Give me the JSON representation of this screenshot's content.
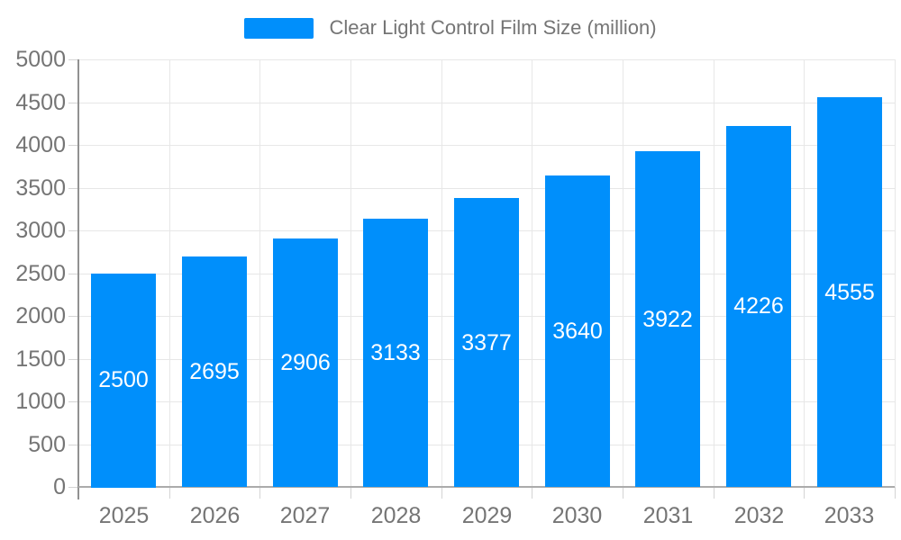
{
  "legend": {
    "label": "Clear Light Control Film Size (million)"
  },
  "colors": {
    "bar": "#008FFB",
    "axis_text": "#757575",
    "grid": "#e7e7e7",
    "tick": "#d4d4d4",
    "y_axis_line": "#919191",
    "x_axis_line": "#ababab",
    "value_label": "#ffffff",
    "background": "#ffffff"
  },
  "chart_data": {
    "type": "bar",
    "title": "Clear Light Control Film Size (million)",
    "series": [
      {
        "name": "Clear Light Control Film Size (million)",
        "values": [
          2500,
          2695,
          2906,
          3133,
          3377,
          3640,
          3922,
          4226,
          4555
        ]
      }
    ],
    "categories": [
      "2025",
      "2026",
      "2027",
      "2028",
      "2029",
      "2030",
      "2031",
      "2032",
      "2033"
    ],
    "xlabel": "",
    "ylabel": "",
    "ylim": [
      0,
      5000
    ],
    "ytick_interval": 500,
    "ytick_labels": [
      "0",
      "500",
      "1000",
      "1500",
      "2000",
      "2500",
      "3000",
      "3500",
      "4000",
      "4500",
      "5000"
    ],
    "grid": true,
    "legend_position": "top",
    "value_labels": "inside-center"
  }
}
